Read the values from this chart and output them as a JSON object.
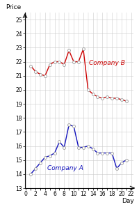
{
  "company_b": [
    21.7,
    21.3,
    21.1,
    21.0,
    21.8,
    22.0,
    22.0,
    21.8,
    22.8,
    22.0,
    22.0,
    22.9,
    20.0,
    19.7,
    19.5,
    19.4,
    19.5,
    19.4,
    19.4,
    19.3,
    19.2
  ],
  "company_a": [
    14.0,
    14.4,
    14.8,
    15.2,
    15.3,
    15.5,
    16.3,
    15.9,
    17.5,
    17.4,
    15.9,
    15.9,
    16.0,
    15.8,
    15.5,
    15.5,
    15.5,
    15.5,
    14.4,
    14.8,
    15.0
  ],
  "days": [
    1,
    2,
    3,
    4,
    5,
    6,
    7,
    8,
    9,
    10,
    11,
    12,
    13,
    14,
    15,
    16,
    17,
    18,
    19,
    20,
    21
  ],
  "color_b": "#cc0000",
  "color_a": "#1111bb",
  "marker_face": "#ffffff",
  "marker_edge": "#999999",
  "label_b": "Company B",
  "label_a": "Company A",
  "label_b_color": "#cc0000",
  "label_a_color": "#1111bb",
  "xlabel": "Day",
  "ylabel": "Price",
  "xlim": [
    -0.2,
    22.5
  ],
  "ylim": [
    13,
    25.5
  ],
  "yticks": [
    13,
    14,
    15,
    16,
    17,
    18,
    19,
    20,
    21,
    22,
    23,
    24,
    25
  ],
  "xticks": [
    0,
    2,
    4,
    6,
    8,
    10,
    12,
    14,
    16,
    18,
    20,
    22
  ],
  "grid_color": "#cccccc",
  "bg_color": "#ffffff",
  "tick_fontsize": 5.5,
  "label_fontsize": 6.5,
  "annotation_fontsize": 6.5
}
